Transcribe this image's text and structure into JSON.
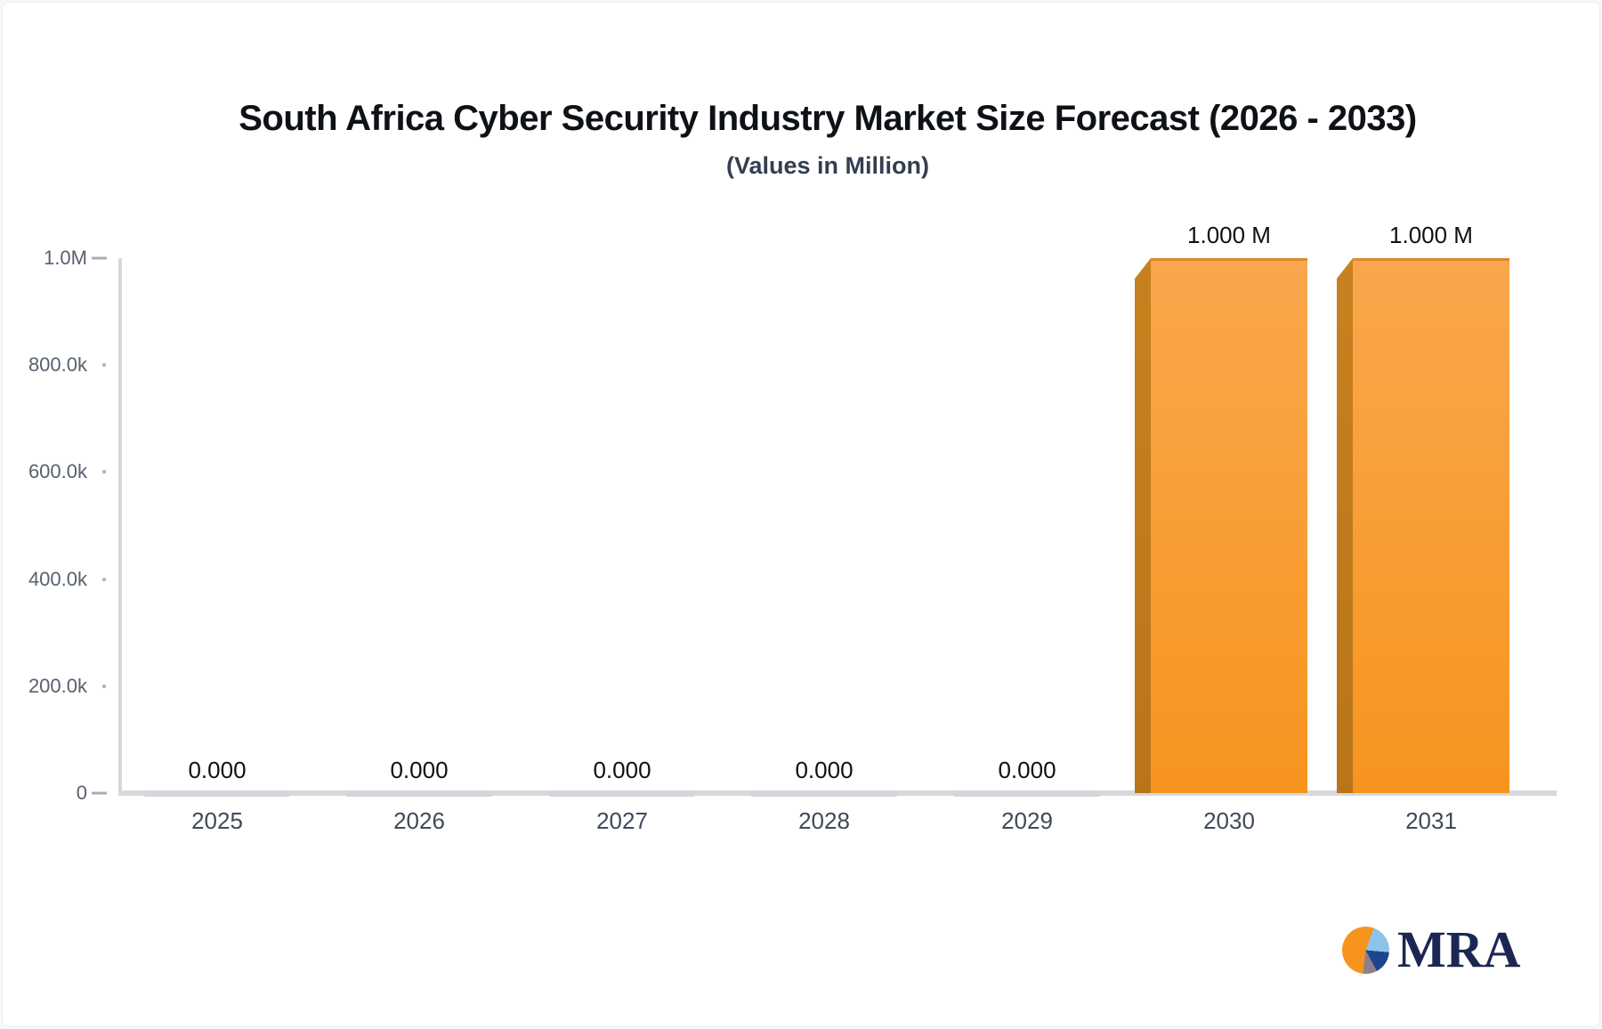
{
  "chart_data": {
    "type": "bar",
    "title": "South Africa Cyber Security Industry Market Size Forecast (2026 - 2033)",
    "subtitle": "(Values in Million)",
    "unit": "Million",
    "categories": [
      "2025",
      "2026",
      "2027",
      "2028",
      "2029",
      "2030",
      "2031"
    ],
    "values": [
      0,
      0,
      0,
      0,
      0,
      1000000,
      1000000
    ],
    "value_labels": [
      "0.000",
      "0.000",
      "0.000",
      "0.000",
      "0.000",
      "1.000 M",
      "1.000 M"
    ],
    "ylim": [
      0,
      1000000
    ],
    "y_ticks": [
      {
        "value": 0,
        "label": "0",
        "mark": "dash"
      },
      {
        "value": 200000,
        "label": "200.0k",
        "mark": "dot"
      },
      {
        "value": 400000,
        "label": "400.0k",
        "mark": "dot"
      },
      {
        "value": 600000,
        "label": "600.0k",
        "mark": "dot"
      },
      {
        "value": 800000,
        "label": "800.0k",
        "mark": "dot"
      },
      {
        "value": 1000000,
        "label": "1.0M",
        "mark": "dash"
      }
    ],
    "grid": false,
    "legend": false,
    "colors": {
      "title": "#0e1116",
      "subtitle": "#333f50",
      "bar_face_top": "#f9a74d",
      "bar_face_bottom": "#f7941e",
      "bar_top_edge": "#df8827",
      "bar_side": "#b9751a",
      "zero_bar": "#d3d6da",
      "axis_line": "#d6d9de",
      "tick": "#a9adb4",
      "y_label": "#57616f",
      "x_label": "#3e4a5a",
      "value_label": "#0e1013"
    }
  },
  "logo": {
    "text": "MRA",
    "text_color": "#1b2752",
    "pie_colors": {
      "orange": "#f7941e",
      "light_blue": "#8ec4ea",
      "dark_blue": "#1d448f",
      "gray": "#8d8189"
    }
  }
}
